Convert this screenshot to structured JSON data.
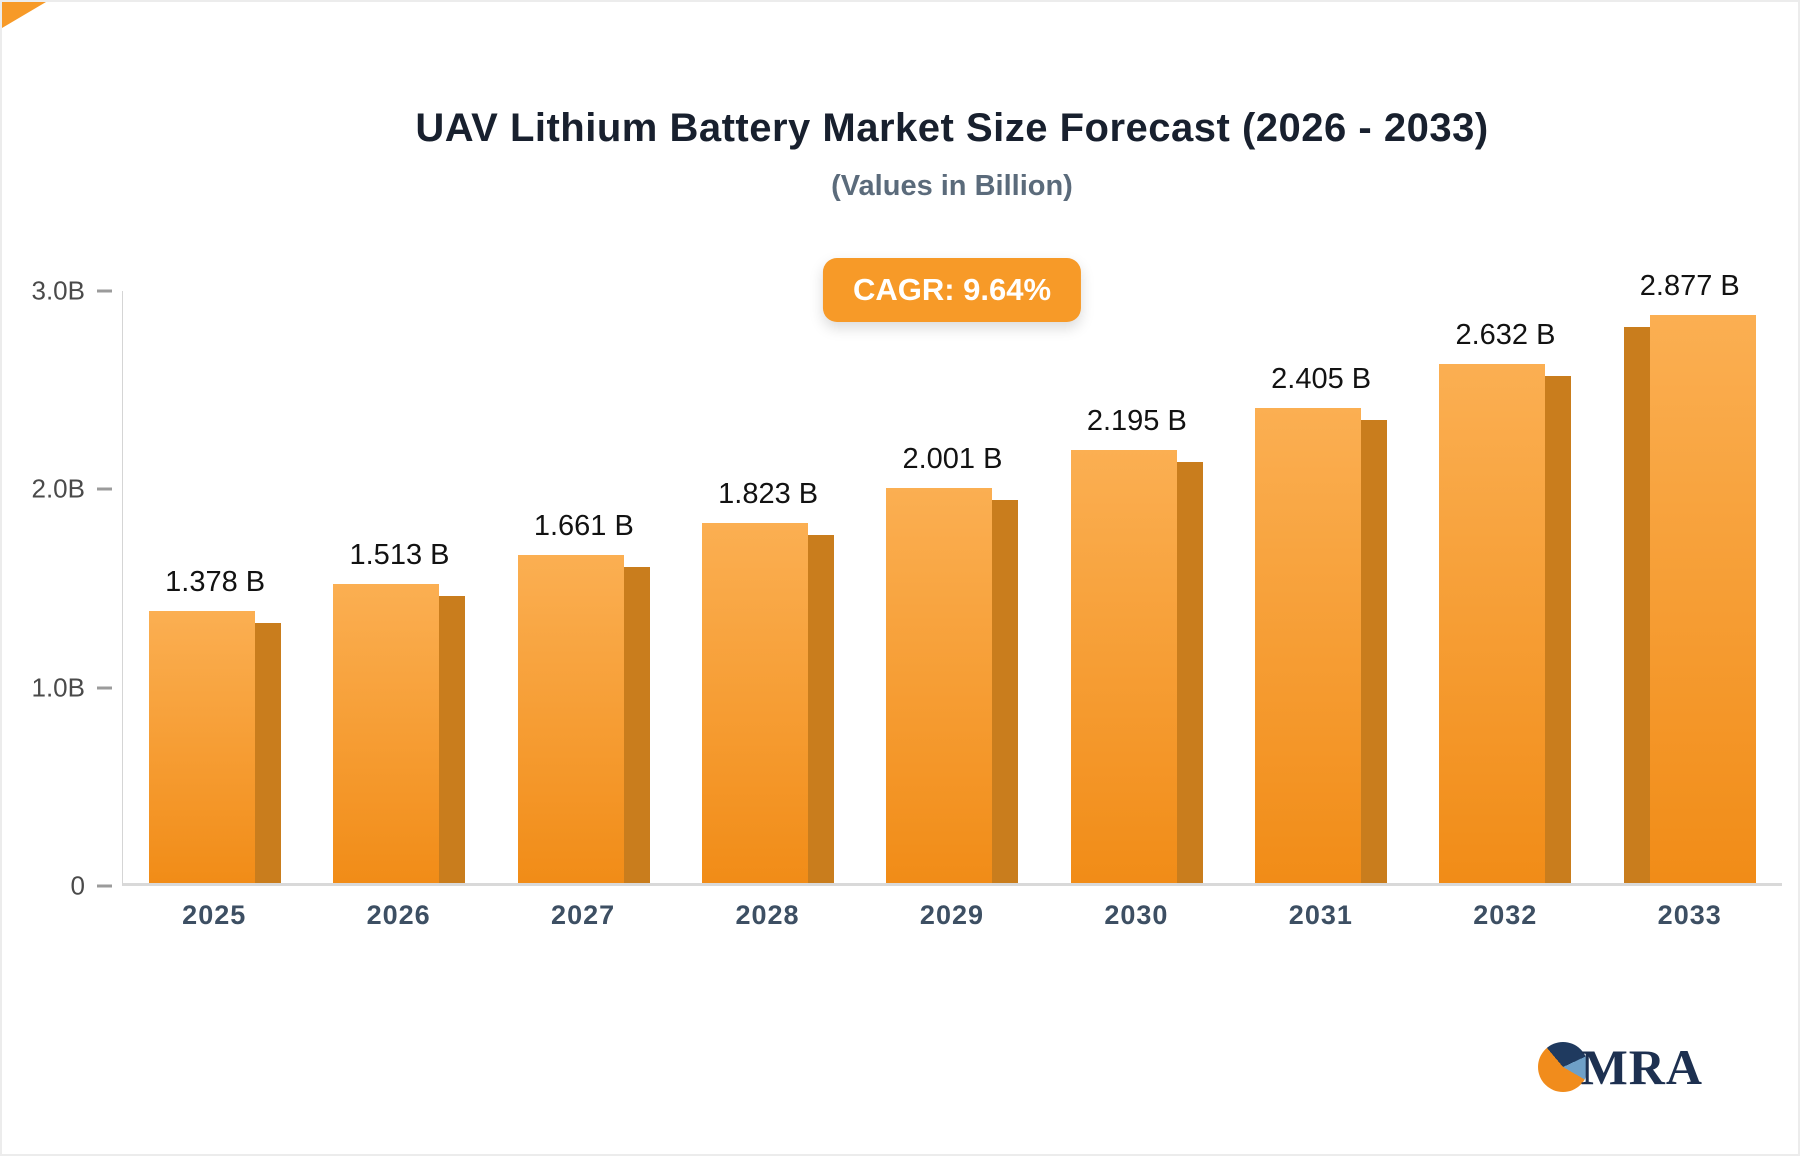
{
  "page": {
    "title": "UAV Lithium Battery Market Size Forecast (2026 - 2033)",
    "subtitle": "(Values in Billion)",
    "badge": "CAGR: 9.64%"
  },
  "chart_data": {
    "type": "bar",
    "title": "UAV Lithium Battery Market Size Forecast (2026 - 2033)",
    "subtitle": "(Values in Billion)",
    "badge": "CAGR: 9.64%",
    "categories": [
      "2025",
      "2026",
      "2027",
      "2028",
      "2029",
      "2030",
      "2031",
      "2032",
      "2033"
    ],
    "values": [
      1.378,
      1.513,
      1.661,
      1.823,
      2.001,
      2.195,
      2.405,
      2.632,
      2.877
    ],
    "value_labels": [
      "1.378 B",
      "1.513 B",
      "1.661 B",
      "1.823 B",
      "2.001 B",
      "2.195 B",
      "2.405 B",
      "2.632 B",
      "2.877 B"
    ],
    "xlabel": "",
    "ylabel": "",
    "ylim": [
      0,
      3
    ],
    "yticks": [
      {
        "value": 3,
        "label": "3.0B"
      },
      {
        "value": 2,
        "label": "2.0B"
      },
      {
        "value": 1,
        "label": "1.0B"
      },
      {
        "value": 0,
        "label": "0"
      }
    ],
    "grid": false,
    "legend": "none",
    "colors": {
      "bar_top": "#fbaf52",
      "bar_bottom": "#f18c17",
      "bar_side": "#c97d1d",
      "badge": "#f79a28",
      "title_text": "#18202e",
      "subtitle_text": "#5b6b7b",
      "axis_label_text": "#3d4f63"
    }
  },
  "logo": {
    "text": "MRA"
  }
}
